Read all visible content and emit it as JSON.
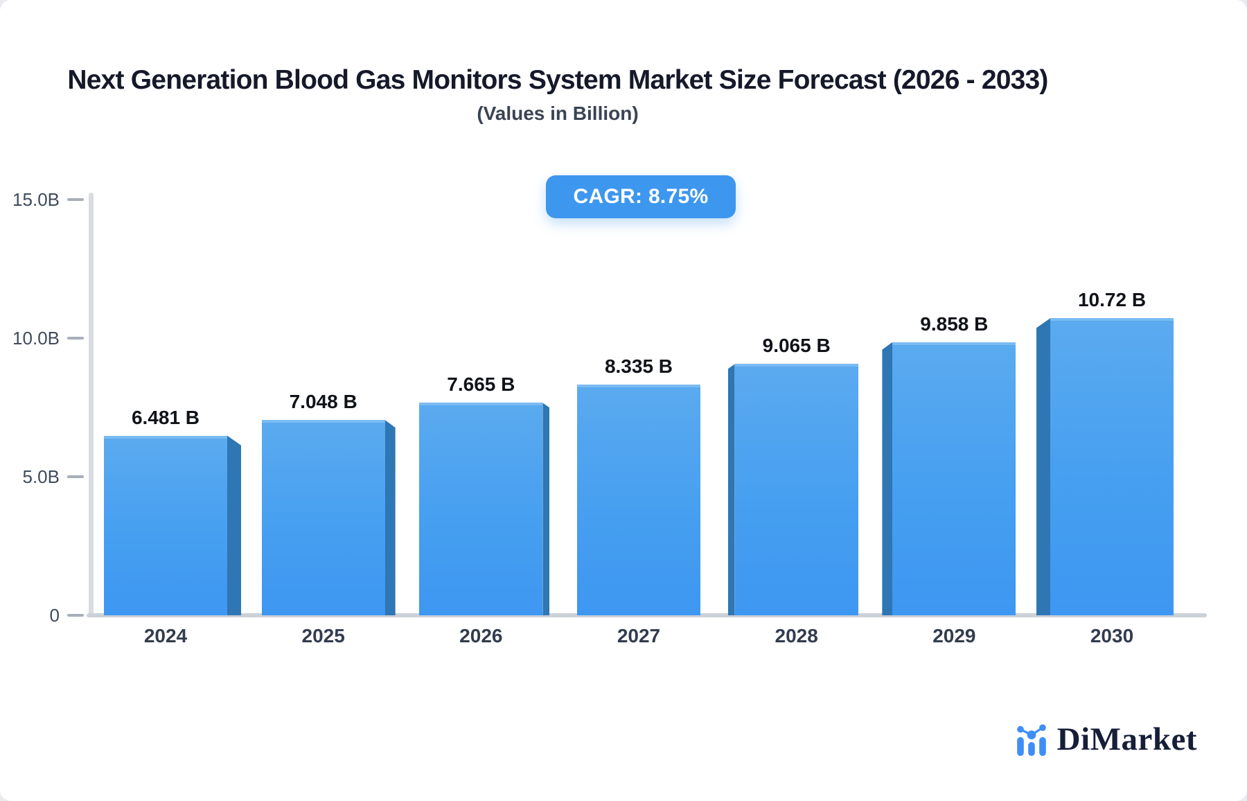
{
  "chart_data": {
    "type": "bar",
    "title": "Next Generation Blood Gas Monitors System Market Size Forecast (2026 - 2033)",
    "subtitle": "(Values in Billion)",
    "annotation": "CAGR: 8.75%",
    "categories": [
      "2024",
      "2025",
      "2026",
      "2027",
      "2028",
      "2029",
      "2030"
    ],
    "values": [
      6.481,
      7.048,
      7.665,
      8.335,
      9.065,
      9.858,
      10.72
    ],
    "value_labels": [
      "6.481 B",
      "7.048 B",
      "7.665 B",
      "8.335 B",
      "9.065 B",
      "9.858 B",
      "10.72 B"
    ],
    "unit": "Billion",
    "xlabel": "",
    "ylabel": "",
    "ylim": [
      0,
      15
    ],
    "yticks": [
      {
        "value": 0,
        "label": "0"
      },
      {
        "value": 5,
        "label": "5.0B"
      },
      {
        "value": 10,
        "label": "10.0B"
      },
      {
        "value": 15,
        "label": "15.0B"
      }
    ],
    "grid": false,
    "legend": null
  },
  "colors": {
    "accent_blue": "#3e97ee",
    "bar_gradient_top": "#5aaaef",
    "bar_gradient_bottom": "#3e97f1",
    "bar_side_dark": "#2e76b4",
    "axis_gray": "#ccd1d7",
    "title_dark": "#15192a",
    "brand_navy": "#161e38",
    "brand_icon_blue": "#3f8ef7"
  },
  "footer": {
    "brand": "DiMarket"
  }
}
